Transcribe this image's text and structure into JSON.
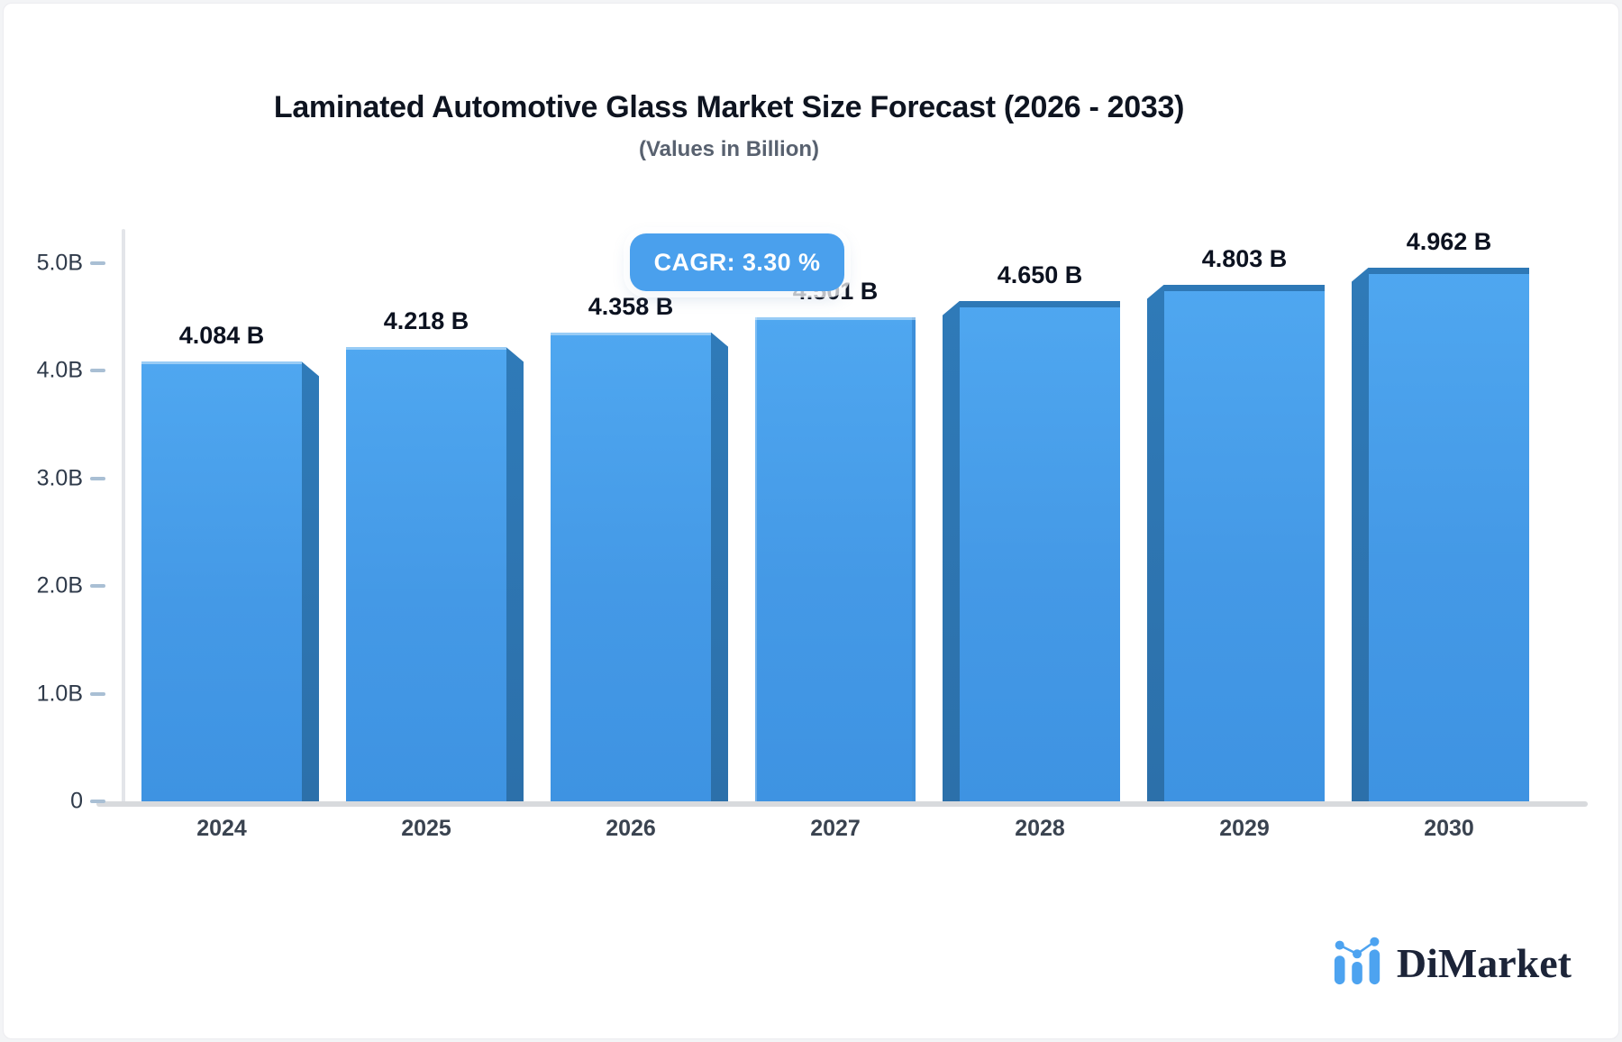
{
  "header": {
    "title": "Laminated Automotive Glass Market Size Forecast (2026 - 2033)",
    "subtitle": "(Values in Billion)"
  },
  "cagr_badge": {
    "label": "CAGR: 3.30 %",
    "color": "#4AA0ED"
  },
  "chart_data": {
    "type": "bar",
    "title": "Laminated Automotive Glass Market Size Forecast (2026 - 2033)",
    "subtitle": "(Values in Billion)",
    "categories": [
      "2024",
      "2025",
      "2026",
      "2027",
      "2028",
      "2029",
      "2030"
    ],
    "values": [
      4.084,
      4.218,
      4.358,
      4.501,
      4.65,
      4.803,
      4.962
    ],
    "value_labels": [
      "4.084 B",
      "4.218 B",
      "4.358 B",
      "4.501 B",
      "4.650 B",
      "4.803 B",
      "4.962 B"
    ],
    "cagr": "3.30 %",
    "xlabel": "",
    "ylabel": "",
    "ylim": [
      0,
      5
    ],
    "y_ticks": [
      "5.0B",
      "4.0B",
      "3.0B",
      "2.0B",
      "1.0B",
      "0"
    ],
    "grid": false,
    "legend": false,
    "bar_color": "#469FE9",
    "bar_side_color": "#2E77B5"
  },
  "branding": {
    "logo_text": "DiMarket",
    "logo_icon": "bar-chart-logo-icon",
    "logo_text_color": "#1C2438",
    "logo_accent_color": "#4DA3F0"
  }
}
